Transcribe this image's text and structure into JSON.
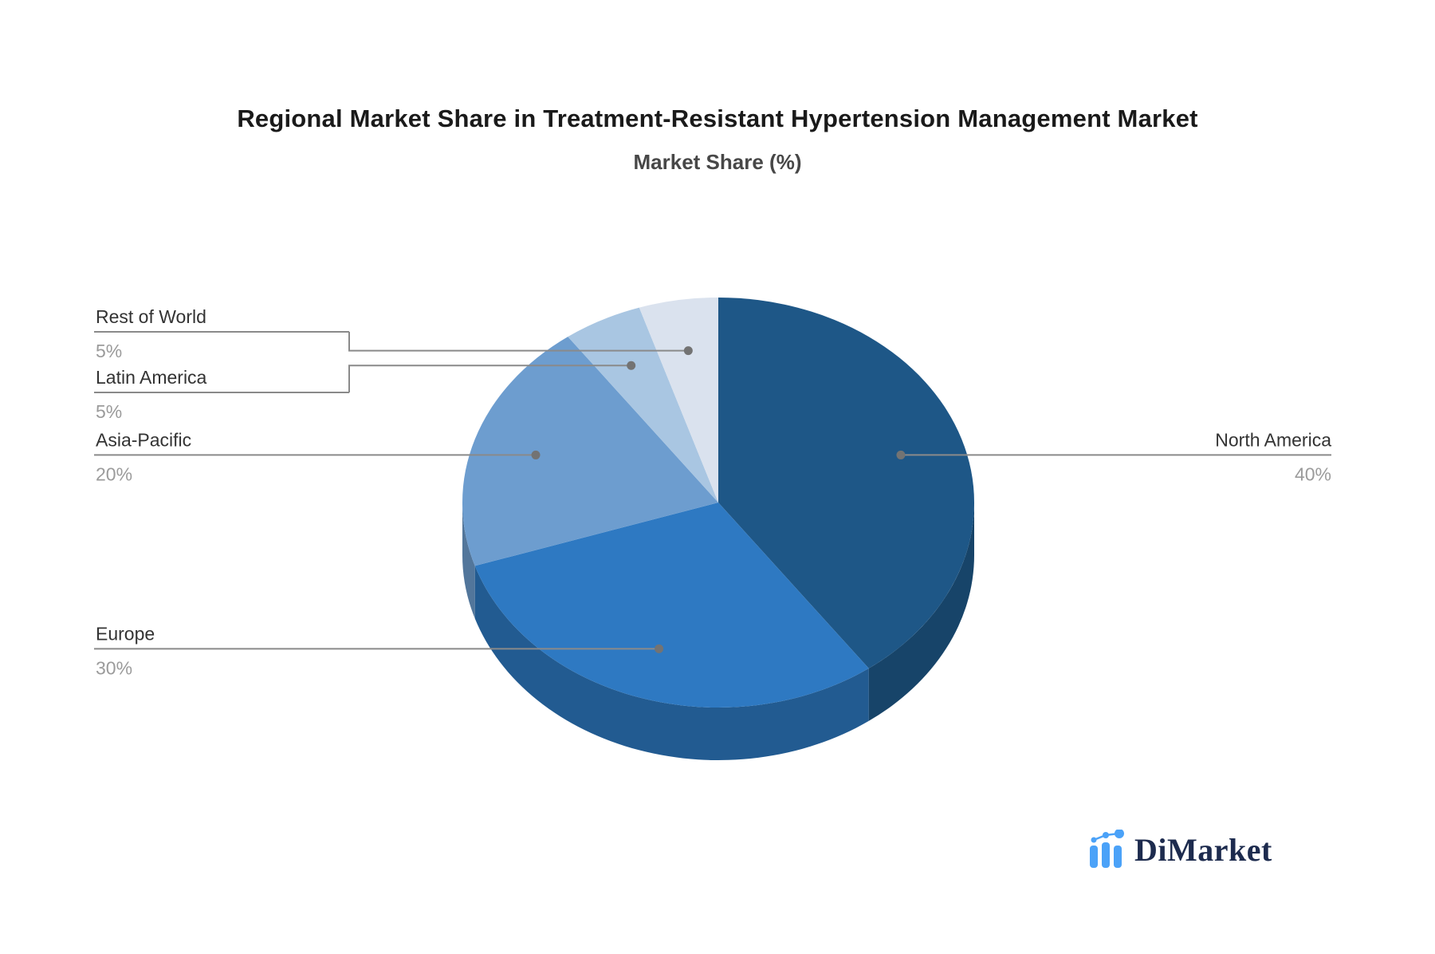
{
  "chart_data": {
    "type": "pie",
    "style": "3d",
    "title": "Regional Market Share in Treatment-Resistant Hypertension Management Market",
    "subtitle": "Market Share (%)",
    "labels": [
      "North America",
      "Europe",
      "Asia-Pacific",
      "Latin America",
      "Rest of World"
    ],
    "values": [
      40,
      30,
      20,
      5,
      5
    ],
    "unit": "%",
    "start_angle": "12-oclock",
    "direction": "clockwise",
    "legend_position": "none",
    "label_display": "callout-lines",
    "colors": [
      "#1E5787",
      "#2E79C2",
      "#6D9DCF",
      "#A9C6E2",
      "#DAE2EE"
    ],
    "side_colors": [
      "#174469",
      "#225B91",
      "#52769B",
      "#7E95B0",
      "#A3AFC0"
    ],
    "text_colors": {
      "title": "#1a1a1a",
      "subtitle": "#474747",
      "label": "#333333",
      "value": "#9b9b9b"
    },
    "line_color": "#8a8a8a",
    "dot_color": "#737373"
  },
  "logo": {
    "text": "DiMarket",
    "icon": "bar-chart-trend-icon",
    "text_color": "#1d2b4e",
    "icon_color": "#4BA2F8"
  }
}
